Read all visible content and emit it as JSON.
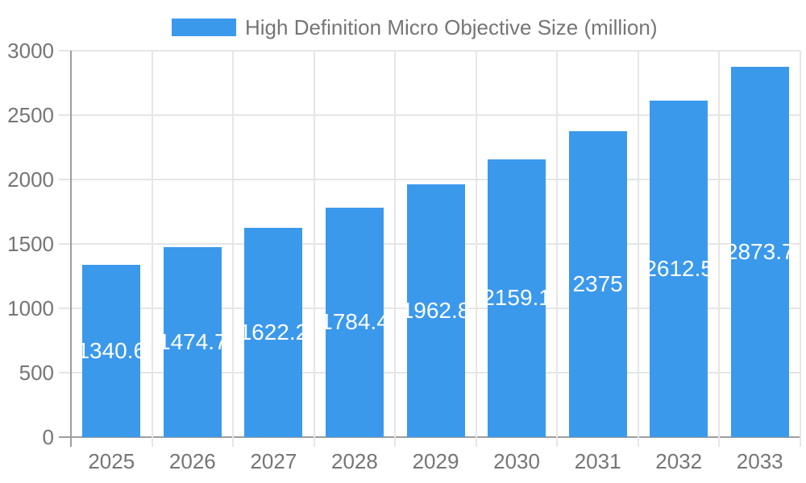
{
  "chart_data": {
    "type": "bar",
    "title": "High Definition Micro Objective Size (million)",
    "categories": [
      "2025",
      "2026",
      "2027",
      "2028",
      "2029",
      "2030",
      "2031",
      "2032",
      "2033"
    ],
    "values": [
      1340.6,
      1474.7,
      1622.2,
      1784.4,
      1962.8,
      2159.1,
      2375,
      2612.5,
      2873.7
    ],
    "xlabel": "",
    "ylabel": "",
    "ylim": [
      0,
      3000
    ],
    "yticks": [
      0,
      500,
      1000,
      1500,
      2000,
      2500,
      3000
    ],
    "grid": true,
    "legend_position": "top",
    "value_labels": "inside-center"
  },
  "colors": {
    "bar": "#3b99ec",
    "value_label": "#ffffff",
    "axis_text": "#757575",
    "gridline": "#e6e6e6",
    "axis_line": "#9e9e9e",
    "background": "#ffffff"
  }
}
